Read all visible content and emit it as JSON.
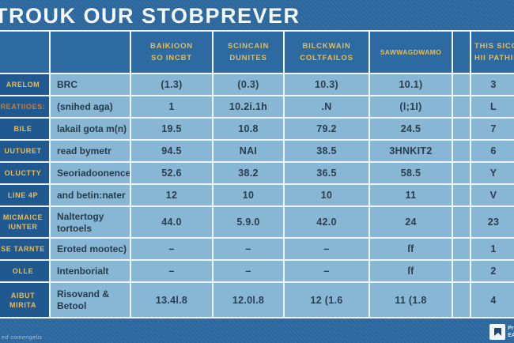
{
  "title": "TROUK OUR STOBPREVER",
  "colors": {
    "background": "#2d6aa1",
    "label_column": "#20598f",
    "data_cell": "#87b7d5",
    "grid_lines": "#edf3f7",
    "header_text": "#e6bd55",
    "accent_label": "#c97c33",
    "cell_text": "#2a3e4e",
    "title_text": "#f4f8fb"
  },
  "table": {
    "header": [
      {
        "line1": "",
        "line2": ""
      },
      {
        "line1": "",
        "line2": ""
      },
      {
        "line1": "BAIKIOON",
        "line2": "SO INCBT"
      },
      {
        "line1": "SCINCAIN",
        "line2": "DUNITES"
      },
      {
        "line1": "BILCKWAIN",
        "line2": "COLTFAILOS"
      },
      {
        "line1": "SAWWAGDWAMO",
        "line2": ""
      },
      {
        "line1": "",
        "line2": ""
      },
      {
        "line1": "THIS SICOUA",
        "line2": "HII PATHIR"
      }
    ],
    "rows": [
      {
        "label": "ARELOM",
        "label2": "",
        "desc": "BRC",
        "desc2": "",
        "accent": false,
        "values": [
          "(1.3)",
          "(0.3)",
          "10.3)",
          "10.1)",
          "",
          "3"
        ]
      },
      {
        "label": "REATIIOES:",
        "label2": "",
        "desc": "(snihed aga)",
        "desc2": "",
        "accent": true,
        "values": [
          "1",
          "10.2i.1h",
          ".N",
          "(l;1I)",
          "",
          "L"
        ]
      },
      {
        "label": "BILE",
        "label2": "",
        "desc": "lakail gota m(n)",
        "desc2": "",
        "accent": false,
        "values": [
          "19.5",
          "10.8",
          "79.2",
          "24.5",
          "",
          "7"
        ]
      },
      {
        "label": "UUTURET",
        "label2": "",
        "desc": "read bymetr",
        "desc2": "",
        "accent": false,
        "values": [
          "94.5",
          "NAI",
          "38.5",
          "3HNKIT2",
          "",
          "6"
        ]
      },
      {
        "label": "OLUCTTY",
        "label2": "",
        "desc": "Seoriadoonence",
        "desc2": "",
        "accent": false,
        "values": [
          "52.6",
          "38.2",
          "36.5",
          "58.5",
          "",
          "Y"
        ]
      },
      {
        "label": "LINE 4P",
        "label2": "",
        "desc": "and betin:nater",
        "desc2": "",
        "accent": false,
        "values": [
          "12",
          "10",
          "10",
          "11",
          "",
          "V"
        ]
      },
      {
        "label": "MICMAICE",
        "label2": "IUNTER",
        "desc": "Naltertogy",
        "desc2": "tortoels",
        "accent": false,
        "values": [
          "44.0",
          "5.9.0",
          "42.0",
          "24",
          "",
          "23"
        ]
      },
      {
        "label": "SE TARNTE",
        "label2": "",
        "desc": "Eroted mootec)",
        "desc2": "",
        "accent": false,
        "values": [
          "–",
          "–",
          "–",
          "ſf",
          "",
          "1"
        ]
      },
      {
        "label": "OLLE",
        "label2": "",
        "desc": "Intenborialt",
        "desc2": "",
        "accent": false,
        "values": [
          "–",
          "–",
          "–",
          "ſf",
          "",
          "2"
        ]
      },
      {
        "label": "AIBUT",
        "label2": "MIRITA",
        "desc": "Risovand &",
        "desc2": "Betool",
        "accent": false,
        "values": [
          "13.4l.8",
          "12.0l.8",
          "12 (1.6",
          "11 (1.8",
          "",
          "4"
        ]
      }
    ]
  },
  "footer": {
    "note": "ed comengelis",
    "logo_line1": "Pr",
    "logo_line2": "EA"
  }
}
